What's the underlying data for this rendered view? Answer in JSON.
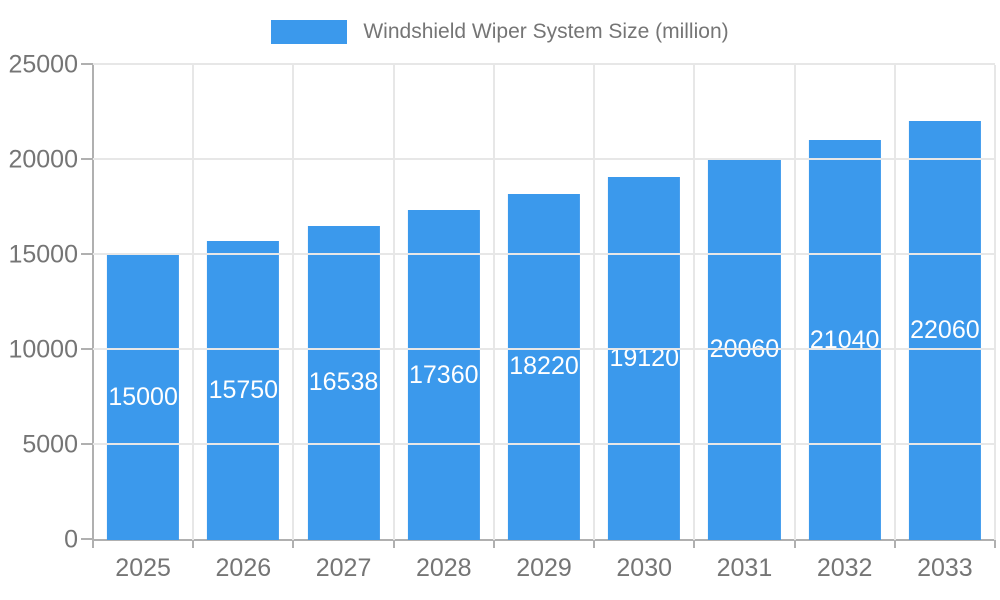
{
  "chart_data": {
    "type": "bar",
    "title": "",
    "legend_label": "Windshield Wiper System Size (million)",
    "legend_position": "top-center",
    "categories": [
      "2025",
      "2026",
      "2027",
      "2028",
      "2029",
      "2030",
      "2031",
      "2032",
      "2033"
    ],
    "values": [
      15000,
      15750,
      16538,
      17360,
      18220,
      19120,
      20060,
      21040,
      22060
    ],
    "xlabel": "",
    "ylabel": "",
    "ylim": [
      0,
      25000
    ],
    "yticks": [
      0,
      5000,
      10000,
      15000,
      20000,
      25000
    ],
    "grid": "both",
    "bar_color": "#3b99ec",
    "bar_label_color": "#ffffff",
    "axis_text_color": "#757575",
    "grid_color": "#e7e7e7",
    "axis_line_color": "#b0b0b0",
    "background_color": "#ffffff"
  }
}
